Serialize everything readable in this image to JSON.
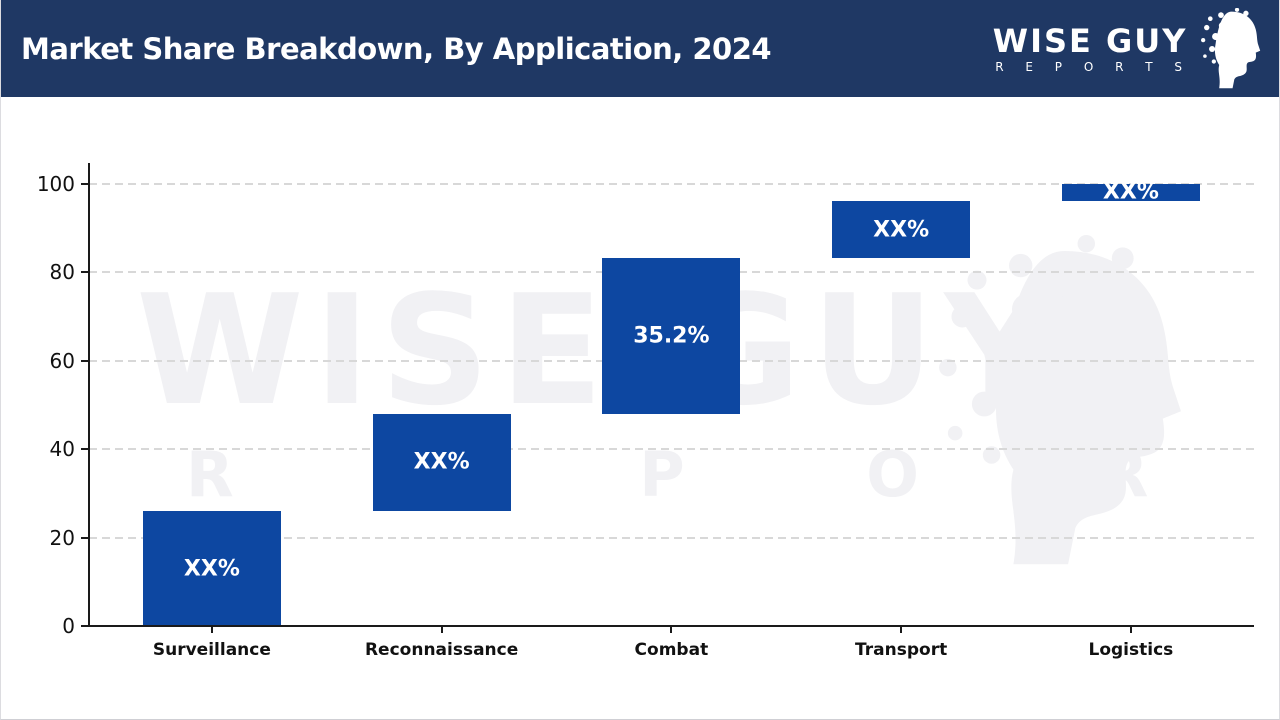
{
  "header": {
    "title": "Market Share Breakdown, By Application, 2024",
    "bg_color": "#1f3864",
    "logo": {
      "line1": "WISE GUY",
      "line2": "R E P O R T S",
      "icon": "dotted-head-profile"
    }
  },
  "watermark": {
    "line1": "WISE GUY",
    "line2": "R E P O R T S",
    "icon": "dotted-head-profile"
  },
  "chart_data": {
    "type": "bar",
    "variant": "waterfall-floating-bars",
    "title": "Market Share Breakdown, By Application, 2024",
    "categories": [
      "Surveillance",
      "Reconnaissance",
      "Combat",
      "Transport",
      "Logistics"
    ],
    "bar_bottoms": [
      0,
      26,
      48,
      83.2,
      96.2
    ],
    "bar_tops": [
      26,
      48,
      83.2,
      96.2,
      100
    ],
    "bar_labels": [
      "XX%",
      "XX%",
      "35.2%",
      "XX%",
      "XX%"
    ],
    "xlabel": "",
    "ylabel": "",
    "ylim": [
      0,
      100
    ],
    "yticks": [
      0,
      20,
      40,
      60,
      80,
      100
    ],
    "bar_color": "#0d47a1",
    "label_color": "#ffffff",
    "grid": "horizontal-dashed",
    "legend": "none"
  }
}
